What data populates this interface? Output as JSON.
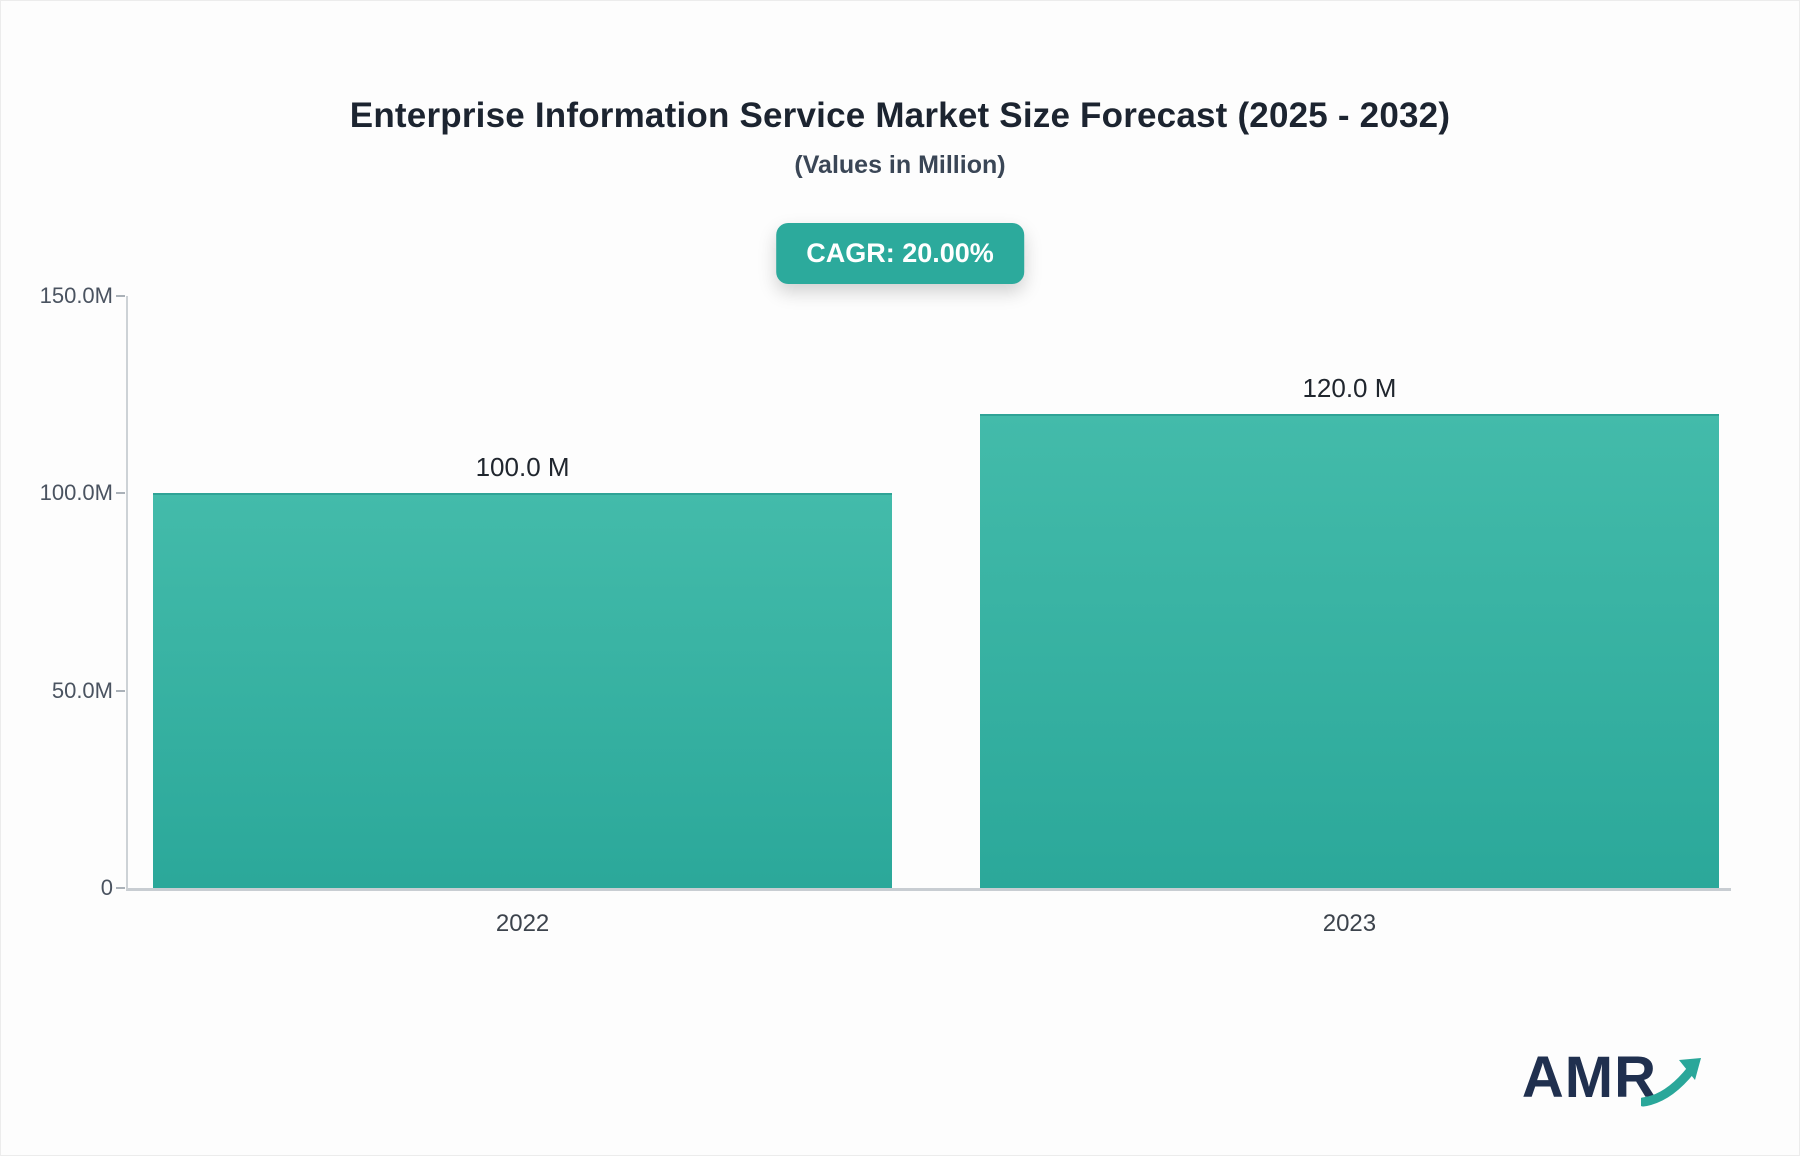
{
  "chart_data": {
    "type": "bar",
    "title": "Enterprise Information Service Market Size Forecast (2025 - 2032)",
    "subtitle": "(Values in Million)",
    "categories": [
      "2022",
      "2023"
    ],
    "values": [
      100.0,
      120.0
    ],
    "value_labels": [
      "100.0 M",
      "120.0 M"
    ],
    "ylim": [
      0,
      150
    ],
    "yticks": [
      {
        "label": "150.0M",
        "value": 150
      },
      {
        "label": "100.0M",
        "value": 100
      },
      {
        "label": "50.0M",
        "value": 50
      },
      {
        "label": "0",
        "value": 0
      }
    ],
    "grid": false,
    "legend": "none",
    "bar_color_top": "#43bbaa",
    "bar_color_bottom": "#2ba89a"
  },
  "badge": {
    "label": "CAGR: 20.00%",
    "background": "#2caa9c",
    "text_color": "#ffffff"
  },
  "logo": {
    "text": "AMR",
    "text_color": "#20304f",
    "arrow_color": "#2aa79a",
    "arrow_icon": "trend-up-arrow"
  }
}
